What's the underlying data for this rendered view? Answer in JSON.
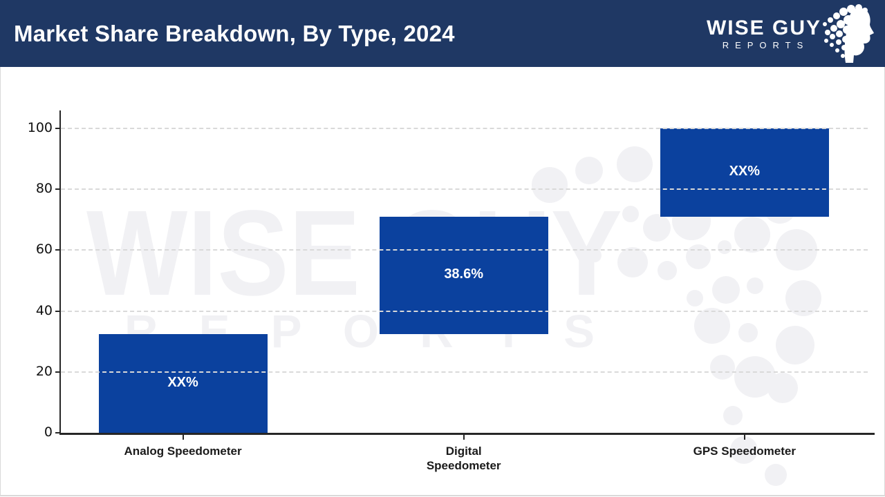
{
  "header": {
    "title": "Market Share Breakdown, By Type, 2024",
    "logo": {
      "line1": "WISE GUY",
      "line2": "REPORTS"
    }
  },
  "watermark": {
    "line1": "WISE GUY",
    "line2": "REPORTS"
  },
  "colors": {
    "header_bg": "#1F3864",
    "bar": "#0B419E",
    "bar_label": "#ffffff",
    "grid": "#d9d9d9",
    "axis": "#262626",
    "tick_text": "#111111",
    "category_text": "#1a1a1a",
    "watermark": "#f1f1f4",
    "frame_border": "#d9d9d9"
  },
  "chart_data": {
    "type": "bar",
    "subtype": "floating-waterfall",
    "title": "Market Share Breakdown, By Type, 2024",
    "categories": [
      "Analog Speedometer",
      "Digital Speedometer",
      "GPS Speedometer"
    ],
    "category_label_lines": [
      [
        "Analog Speedometer"
      ],
      [
        "Digital",
        "Speedometer"
      ],
      [
        "GPS Speedometer"
      ]
    ],
    "segments": [
      {
        "category": "Analog Speedometer",
        "start": 0,
        "end": 32.4,
        "span": 32.4,
        "label": "XX%"
      },
      {
        "category": "Digital Speedometer",
        "start": 32.4,
        "end": 71.0,
        "span": 38.6,
        "label": "38.6%"
      },
      {
        "category": "GPS Speedometer",
        "start": 71.0,
        "end": 100,
        "span": 29.0,
        "label": "XX%"
      }
    ],
    "yticks": [
      0,
      20,
      40,
      60,
      80,
      100
    ],
    "ylim": [
      0,
      106
    ],
    "xlabel": "",
    "ylabel": "",
    "grid": "horizontal-dashed",
    "legend": null
  }
}
